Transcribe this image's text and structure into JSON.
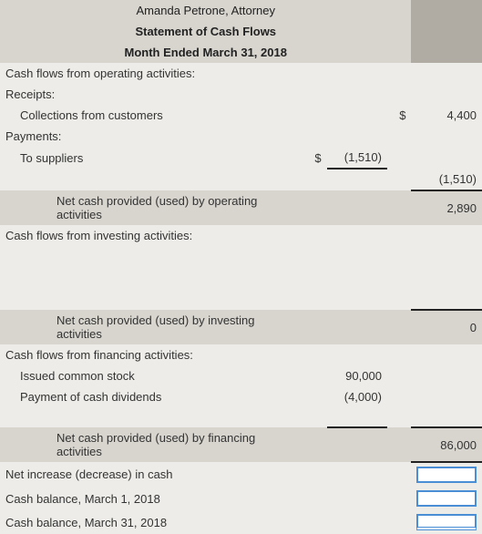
{
  "header": {
    "company": "Amanda Petrone, Attorney",
    "title": "Statement of Cash Flows",
    "period": "Month Ended March 31, 2018"
  },
  "operating": {
    "section": "Cash flows from operating activities:",
    "receipts_label": "Receipts:",
    "collections_label": "Collections from customers",
    "collections_currency": "$",
    "collections_amount": "4,400",
    "payments_label": "Payments:",
    "suppliers_label": "To suppliers",
    "suppliers_currency": "$",
    "suppliers_amount": "(1,510)",
    "payments_total": "(1,510)",
    "net_label": "Net cash provided (used) by operating activities",
    "net_amount": "2,890"
  },
  "investing": {
    "section": "Cash flows from investing activities:",
    "net_label": "Net cash provided (used) by investing activities",
    "net_amount": "0"
  },
  "financing": {
    "section": "Cash flows from financing activities:",
    "issued_label": "Issued common stock",
    "issued_amount": "90,000",
    "dividends_label": "Payment of cash dividends",
    "dividends_amount": "(4,000)",
    "net_label": "Net cash provided (used) by financing activities",
    "net_amount": "86,000"
  },
  "summary": {
    "net_increase": "Net increase (decrease) in cash",
    "balance_start": "Cash balance, March 1, 2018",
    "balance_end": "Cash balance, March 31, 2018"
  },
  "colors": {
    "header_bg": "#d8d5cf",
    "header_dark": "#b0aca4",
    "body_bg": "#edece8",
    "input_border": "#4a8fd6",
    "underline": "#222222"
  }
}
